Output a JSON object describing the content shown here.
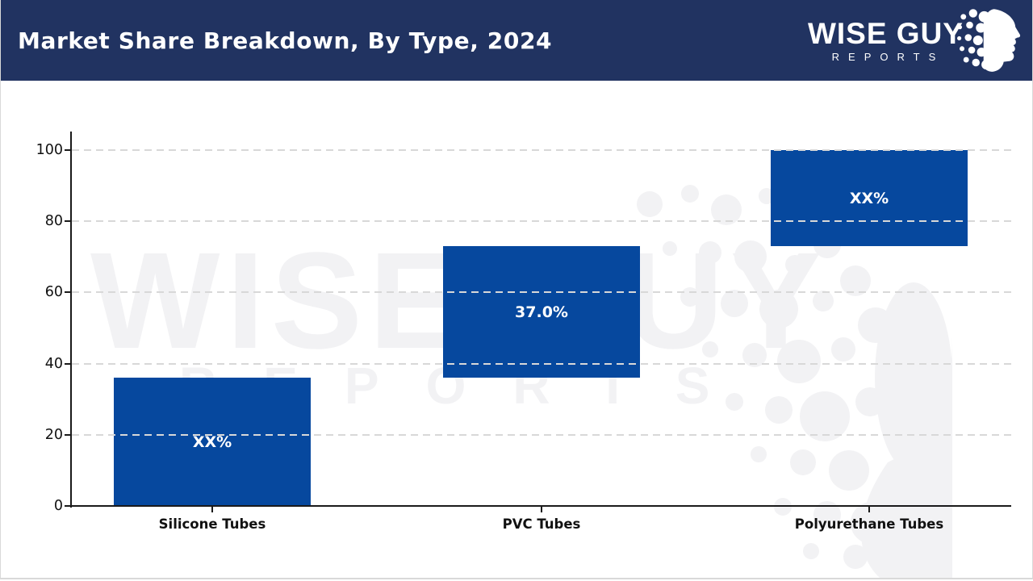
{
  "header": {
    "title": "Market Share Breakdown, By Type, 2024",
    "bg_color": "#213361",
    "logo": {
      "name": "WISE GUY",
      "tagline": "REPORTS"
    }
  },
  "watermark": {
    "line1": "WISE GUY",
    "line2": "REPORTS"
  },
  "chart_data": {
    "type": "bar",
    "variant": "stacked-waterfall",
    "title": "Market Share Breakdown, By Type, 2024",
    "categories": [
      "Silicone Tubes",
      "PVC Tubes",
      "Polyurethane Tubes"
    ],
    "segments": [
      {
        "category": "Silicone Tubes",
        "start": 0,
        "end": 36,
        "label": "XX%"
      },
      {
        "category": "PVC Tubes",
        "start": 36,
        "end": 73,
        "label": "37.0%"
      },
      {
        "category": "Polyurethane Tubes",
        "start": 73,
        "end": 100,
        "label": "XX%"
      }
    ],
    "y_ticks": [
      0,
      20,
      40,
      60,
      80,
      100
    ],
    "ylim": [
      0,
      105
    ],
    "xlabel": "",
    "ylabel": "",
    "grid": "horizontal-dashed",
    "legend": "none",
    "bar_color": "#06489e",
    "bar_label_color": "#ffffff",
    "axis_color": "#1a1a1a"
  }
}
